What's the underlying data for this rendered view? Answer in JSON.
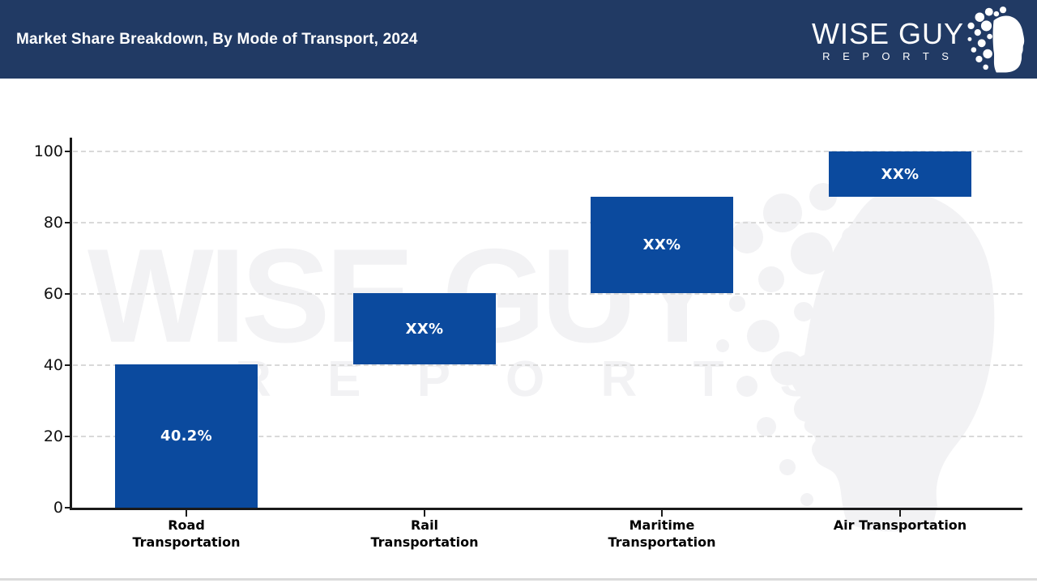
{
  "header": {
    "title": "Market Share Breakdown, By Mode of Transport, 2024",
    "background_color": "#213A64",
    "logo": {
      "name": "WISE GUY",
      "subname": "R E P O R T S"
    }
  },
  "watermark": {
    "line1": "WISE GUY",
    "line2": "R E P O R T S"
  },
  "chart_data": {
    "type": "bar",
    "variant": "waterfall",
    "title": "Market Share Breakdown, By Mode of Transport, 2024",
    "categories": [
      "Road Transportation",
      "Rail Transportation",
      "Maritime Transportation",
      "Air Transportation"
    ],
    "category_label_lines": [
      [
        "Road",
        "Transportation"
      ],
      [
        "Rail",
        "Transportation"
      ],
      [
        "Maritime",
        "Transportation"
      ],
      [
        "Air Transportation"
      ]
    ],
    "segments": [
      {
        "category": "Road Transportation",
        "start": 0,
        "end": 40.2,
        "label": "40.2%"
      },
      {
        "category": "Rail Transportation",
        "start": 40.2,
        "end": 60.2,
        "label": "XX%"
      },
      {
        "category": "Maritime Transportation",
        "start": 60.2,
        "end": 87.2,
        "label": "XX%"
      },
      {
        "category": "Air Transportation",
        "start": 87.2,
        "end": 100,
        "label": "XX%"
      }
    ],
    "ylim": [
      0,
      100
    ],
    "yticks": [
      0,
      20,
      40,
      60,
      80,
      100
    ],
    "grid": {
      "horizontal": true,
      "style": "dashed",
      "color": "#D9D9D9"
    },
    "bar_color": "#0B4A9E",
    "bar_label_color": "#FFFFFF",
    "axis_color": "#1A1A1A",
    "tick_label_color": "#111111"
  }
}
